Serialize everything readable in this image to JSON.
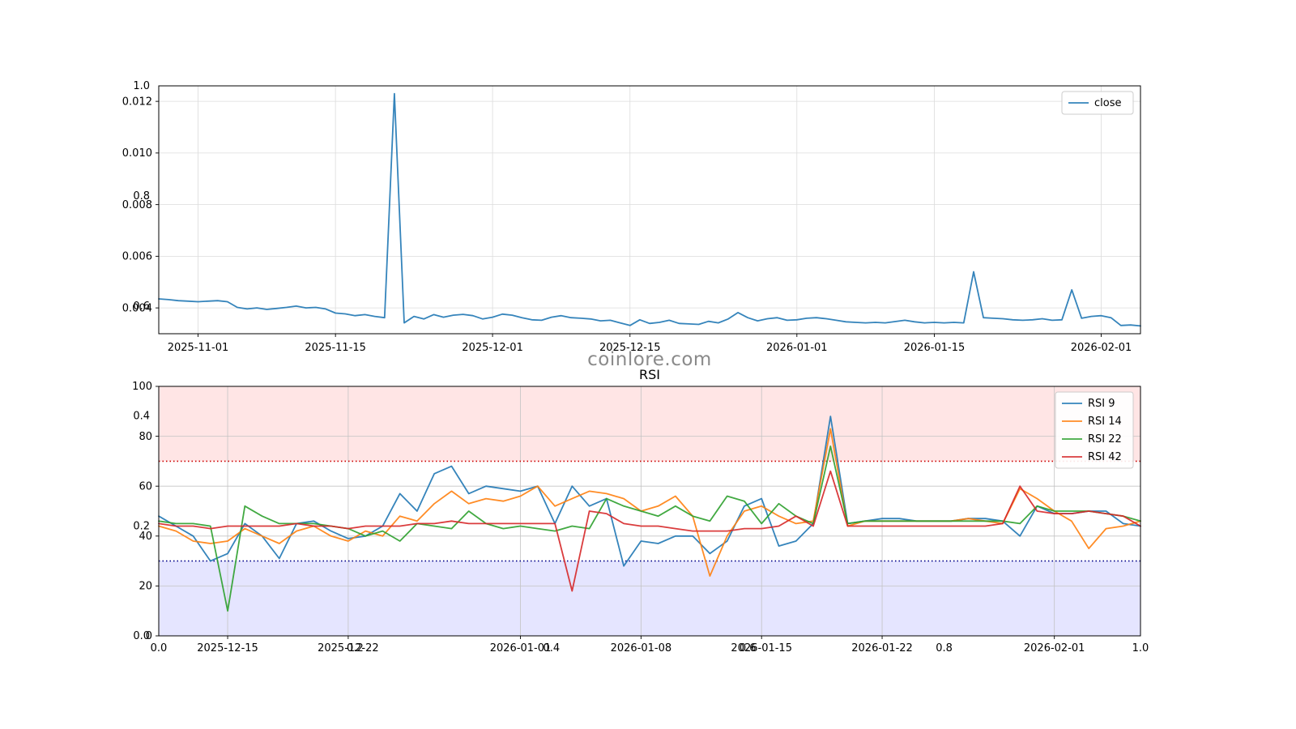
{
  "watermark": "coinlore.com",
  "chart_data": [
    {
      "type": "line",
      "title": "",
      "panel": "price",
      "x_start": "2025-10-28",
      "x_step_days": 1,
      "x_tick_labels": [
        "2025-11-01",
        "2025-11-15",
        "2025-12-01",
        "2025-12-15",
        "2026-01-01",
        "2026-01-15",
        "2026-02-01"
      ],
      "x_tick_index": [
        4,
        18,
        34,
        48,
        65,
        79,
        96
      ],
      "y_tick_values": [
        0.004,
        0.006,
        0.008,
        0.01,
        0.012
      ],
      "y_tick_labels": [
        "0.004",
        "0.006",
        "0.008",
        "0.010",
        "0.012"
      ],
      "ylim": [
        0.003,
        0.0126
      ],
      "grid": true,
      "legend_position": "upper right",
      "series": [
        {
          "name": "close",
          "color": "#1f77b4",
          "values": [
            0.00435,
            0.00432,
            0.00428,
            0.00426,
            0.00424,
            0.00426,
            0.00428,
            0.00424,
            0.00402,
            0.00396,
            0.004,
            0.00394,
            0.00398,
            0.00402,
            0.00407,
            0.004,
            0.00402,
            0.00396,
            0.0038,
            0.00377,
            0.0037,
            0.00374,
            0.00367,
            0.00362,
            0.0123,
            0.00342,
            0.00367,
            0.00357,
            0.00374,
            0.00364,
            0.00372,
            0.00375,
            0.0037,
            0.00357,
            0.00364,
            0.00376,
            0.00372,
            0.00362,
            0.00354,
            0.00352,
            0.00364,
            0.0037,
            0.00362,
            0.0036,
            0.00357,
            0.0035,
            0.00352,
            0.00342,
            0.00332,
            0.00354,
            0.0034,
            0.00344,
            0.00352,
            0.0034,
            0.00338,
            0.00336,
            0.00348,
            0.00342,
            0.00357,
            0.00382,
            0.00362,
            0.0035,
            0.00358,
            0.00362,
            0.00352,
            0.00354,
            0.0036,
            0.00362,
            0.00358,
            0.00352,
            0.00346,
            0.00344,
            0.00342,
            0.00344,
            0.00342,
            0.00347,
            0.00352,
            0.00346,
            0.00342,
            0.00344,
            0.00342,
            0.00344,
            0.00342,
            0.0054,
            0.00362,
            0.0036,
            0.00358,
            0.00354,
            0.00352,
            0.00354,
            0.00358,
            0.00352,
            0.00354,
            0.0047,
            0.0036,
            0.00367,
            0.0037,
            0.00362,
            0.00332,
            0.00334,
            0.0033
          ]
        }
      ]
    },
    {
      "type": "line",
      "title": "RSI",
      "panel": "rsi",
      "x_start": "2025-12-11",
      "x_step_days": 1,
      "x_tick_labels": [
        "2025-12-15",
        "2025-12-22",
        "2026-01-01",
        "2026-01-08",
        "2026-01-15",
        "2026-01-22",
        "2026-02-01"
      ],
      "x_tick_index": [
        4,
        11,
        21,
        28,
        35,
        42,
        52
      ],
      "y_tick_values": [
        0,
        20,
        40,
        60,
        80,
        100
      ],
      "y_tick_labels": [
        "0",
        "20",
        "40",
        "60",
        "80",
        "100"
      ],
      "ylim": [
        0,
        100
      ],
      "grid": true,
      "legend_position": "upper right",
      "bands": [
        {
          "name": "overbought-band",
          "from": 70,
          "to": 100,
          "color": "rgba(255,0,0,0.10)",
          "line": {
            "at": 70,
            "color": "#cc0000"
          }
        },
        {
          "name": "oversold-band",
          "from": 0,
          "to": 30,
          "color": "rgba(0,0,255,0.10)",
          "line": {
            "at": 30,
            "color": "#00008b"
          }
        }
      ],
      "series": [
        {
          "name": "RSI 9",
          "color": "#1f77b4",
          "values": [
            48,
            44,
            40,
            30,
            33,
            45,
            40,
            31,
            45,
            46,
            42,
            39,
            40,
            44,
            57,
            50,
            65,
            68,
            57,
            60,
            59,
            58,
            60,
            45,
            60,
            52,
            55,
            28,
            38,
            37,
            40,
            40,
            33,
            38,
            52,
            55,
            36,
            38,
            45,
            88,
            45,
            46,
            47,
            47,
            46,
            46,
            46,
            47,
            47,
            46,
            40,
            52,
            49,
            49,
            50,
            50,
            45,
            44
          ]
        },
        {
          "name": "RSI 14",
          "color": "#ff7f0e",
          "values": [
            44,
            42,
            38,
            37,
            38,
            43,
            40,
            37,
            42,
            44,
            40,
            38,
            42,
            40,
            48,
            46,
            53,
            58,
            53,
            55,
            54,
            56,
            60,
            52,
            55,
            58,
            57,
            55,
            50,
            52,
            56,
            48,
            24,
            40,
            50,
            52,
            48,
            45,
            46,
            83,
            44,
            46,
            46,
            46,
            46,
            46,
            46,
            47,
            46,
            45,
            59,
            55,
            50,
            46,
            35,
            43,
            44,
            46
          ]
        },
        {
          "name": "RSI 22",
          "color": "#2ca02c",
          "values": [
            46,
            45,
            45,
            44,
            10,
            52,
            48,
            45,
            45,
            45,
            44,
            43,
            40,
            42,
            38,
            45,
            44,
            43,
            50,
            45,
            43,
            44,
            43,
            42,
            44,
            43,
            55,
            52,
            50,
            48,
            52,
            48,
            46,
            56,
            54,
            45,
            53,
            48,
            45,
            76,
            45,
            46,
            46,
            46,
            46,
            46,
            46,
            46,
            46,
            46,
            45,
            52,
            50,
            50,
            50,
            49,
            48,
            46
          ]
        },
        {
          "name": "RSI 42",
          "color": "#d62728",
          "values": [
            45,
            44,
            44,
            43,
            44,
            44,
            44,
            44,
            45,
            44,
            44,
            43,
            44,
            44,
            44,
            45,
            45,
            46,
            45,
            45,
            45,
            45,
            45,
            45,
            18,
            50,
            49,
            45,
            44,
            44,
            43,
            42,
            42,
            42,
            43,
            43,
            44,
            48,
            44,
            66,
            44,
            44,
            44,
            44,
            44,
            44,
            44,
            44,
            44,
            45,
            60,
            50,
            49,
            49,
            50,
            49,
            48,
            44
          ]
        }
      ]
    }
  ],
  "ghost_axis": {
    "x_labels": [
      "0.0",
      "0.2",
      "0.4",
      "0.6",
      "0.8",
      "1.0"
    ],
    "y_labels": [
      "1.0",
      "0.8",
      "0.6",
      "0.4",
      "0.2",
      "0.0"
    ]
  }
}
